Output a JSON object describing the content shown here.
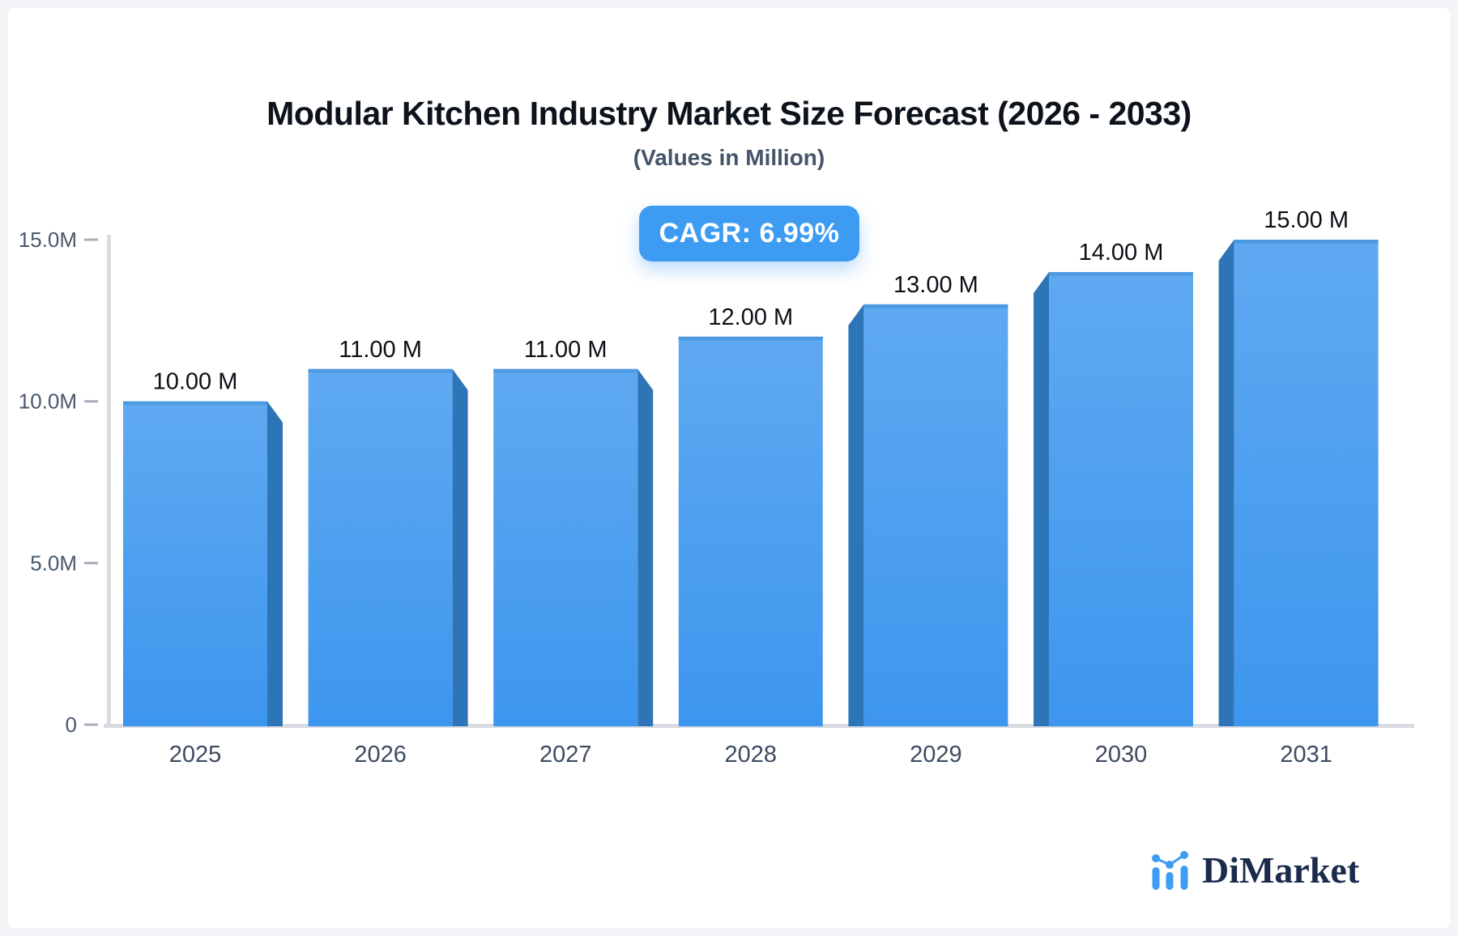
{
  "header": {
    "title": "Modular Kitchen Industry Market Size Forecast (2026 - 2033)",
    "subtitle": "(Values in Million)"
  },
  "badge": {
    "label": "CAGR: 6.99%",
    "bg_color": "#3d9cf2",
    "text_color": "#ffffff"
  },
  "chart_data": {
    "type": "bar",
    "title": "Modular Kitchen Industry Market Size Forecast (2026 - 2033)",
    "subtitle": "(Values in Million)",
    "categories": [
      "2025",
      "2026",
      "2027",
      "2028",
      "2029",
      "2030",
      "2031"
    ],
    "values": [
      10,
      11,
      11,
      12,
      13,
      14,
      15
    ],
    "value_labels": [
      "10.00 M",
      "11.00 M",
      "11.00 M",
      "12.00 M",
      "13.00 M",
      "14.00 M",
      "15.00 M"
    ],
    "unit": "Million",
    "ylim": [
      0,
      15
    ],
    "yticks": [
      {
        "value": 0,
        "label": "0"
      },
      {
        "value": 5,
        "label": "5.0M"
      },
      {
        "value": 10,
        "label": "10.0M"
      },
      {
        "value": 15,
        "label": "15.0M"
      }
    ],
    "grid": false,
    "legend": false,
    "style": {
      "bar_face_top": "#5fa9f1",
      "bar_face_bottom": "#3d96ee",
      "bar_top_edge": "#4d99e0",
      "bar_side": "#2e75b8",
      "axis_color": "#d8dce1",
      "tick_color": "#a6aeb8",
      "ytick_label_color": "#4a596d",
      "xtick_label_color": "#3d4b60",
      "value_label_color": "#0c1016"
    }
  },
  "logo": {
    "text": "DiMarket",
    "icon": "mini-bar-chart-icon",
    "text_color": "#1b2b4b",
    "icon_color": "#3e9df3"
  }
}
